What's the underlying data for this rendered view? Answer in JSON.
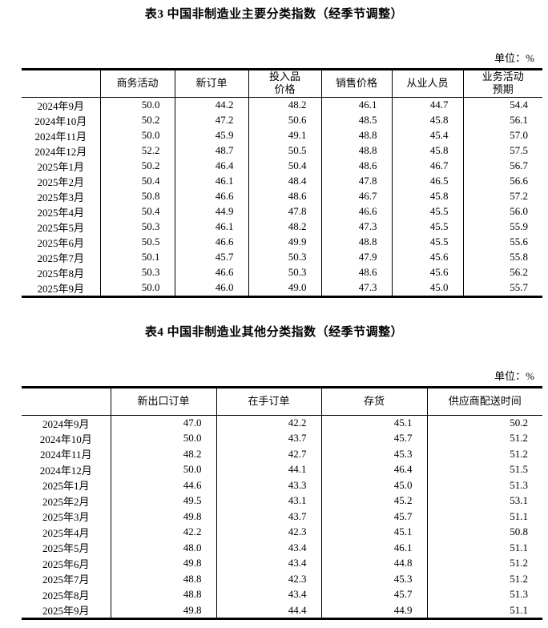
{
  "table3": {
    "title": "表3 中国非制造业主要分类指数（经季节调整）",
    "unit_label": "单位：%",
    "columns": [
      "",
      "商务活动",
      "新订单",
      "投入品\n价格",
      "销售价格",
      "从业人员",
      "业务活动\n预期"
    ],
    "rows": [
      [
        "2024年9月",
        "50.0",
        "44.2",
        "48.2",
        "46.1",
        "44.7",
        "54.4"
      ],
      [
        "2024年10月",
        "50.2",
        "47.2",
        "50.6",
        "48.5",
        "45.8",
        "56.1"
      ],
      [
        "2024年11月",
        "50.0",
        "45.9",
        "49.1",
        "48.8",
        "45.4",
        "57.0"
      ],
      [
        "2024年12月",
        "52.2",
        "48.7",
        "50.5",
        "48.8",
        "45.8",
        "57.5"
      ],
      [
        "2025年1月",
        "50.2",
        "46.4",
        "50.4",
        "48.6",
        "46.7",
        "56.7"
      ],
      [
        "2025年2月",
        "50.4",
        "46.1",
        "48.4",
        "47.8",
        "46.5",
        "56.6"
      ],
      [
        "2025年3月",
        "50.8",
        "46.6",
        "48.6",
        "46.7",
        "45.8",
        "57.2"
      ],
      [
        "2025年4月",
        "50.4",
        "44.9",
        "47.8",
        "46.6",
        "45.5",
        "56.0"
      ],
      [
        "2025年5月",
        "50.3",
        "46.1",
        "48.2",
        "47.3",
        "45.5",
        "55.9"
      ],
      [
        "2025年6月",
        "50.5",
        "46.6",
        "49.9",
        "48.8",
        "45.5",
        "55.6"
      ],
      [
        "2025年7月",
        "50.1",
        "45.7",
        "50.3",
        "47.9",
        "45.6",
        "55.8"
      ],
      [
        "2025年8月",
        "50.3",
        "46.6",
        "50.3",
        "48.6",
        "45.6",
        "56.2"
      ],
      [
        "2025年9月",
        "50.0",
        "46.0",
        "49.0",
        "47.3",
        "45.0",
        "55.7"
      ]
    ]
  },
  "table4": {
    "title": "表4 中国非制造业其他分类指数（经季节调整）",
    "unit_label": "单位：%",
    "columns": [
      "",
      "新出口订单",
      "在手订单",
      "存货",
      "供应商配送时间"
    ],
    "rows": [
      [
        "2024年9月",
        "47.0",
        "42.2",
        "45.1",
        "50.2"
      ],
      [
        "2024年10月",
        "50.0",
        "43.7",
        "45.7",
        "51.2"
      ],
      [
        "2024年11月",
        "48.2",
        "42.7",
        "45.3",
        "51.2"
      ],
      [
        "2024年12月",
        "50.0",
        "44.1",
        "46.4",
        "51.5"
      ],
      [
        "2025年1月",
        "44.6",
        "43.3",
        "45.0",
        "51.3"
      ],
      [
        "2025年2月",
        "49.5",
        "43.1",
        "45.2",
        "53.1"
      ],
      [
        "2025年3月",
        "49.8",
        "43.7",
        "45.7",
        "51.1"
      ],
      [
        "2025年4月",
        "42.2",
        "42.3",
        "45.1",
        "50.8"
      ],
      [
        "2025年5月",
        "48.0",
        "43.4",
        "46.1",
        "51.1"
      ],
      [
        "2025年6月",
        "49.8",
        "43.4",
        "44.8",
        "51.2"
      ],
      [
        "2025年7月",
        "48.8",
        "42.3",
        "45.3",
        "51.2"
      ],
      [
        "2025年8月",
        "48.8",
        "43.4",
        "45.7",
        "51.3"
      ],
      [
        "2025年9月",
        "49.8",
        "44.4",
        "44.9",
        "51.1"
      ]
    ]
  }
}
